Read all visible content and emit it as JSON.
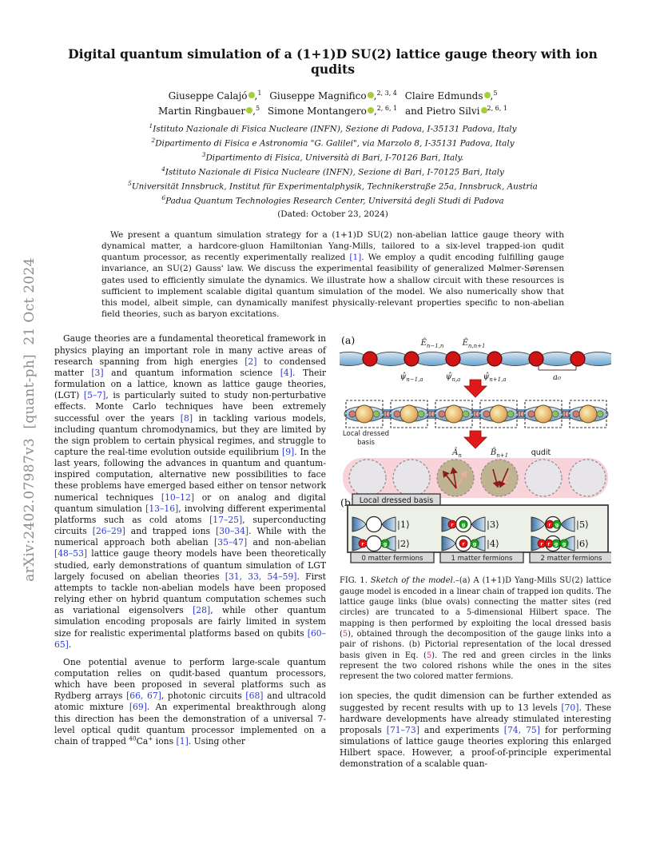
{
  "sidebar": {
    "arxiv_label": "arXiv:2402.07987v3  [quant-ph]  21 Oct 2024"
  },
  "header": {
    "title": "Digital quantum simulation of a (1+1)D SU(2) lattice gauge theory with ion qudits",
    "authors": [
      {
        "name": "Giuseppe Calajó",
        "sep": ",",
        "sups": "1"
      },
      {
        "name": "Giuseppe Magnifico",
        "sep": ",",
        "sups": "2, 3, 4"
      },
      {
        "name": "Claire Edmunds",
        "sep": ",",
        "sups": "5"
      },
      {
        "name": "Martin Ringbauer",
        "sep": ",",
        "sups": "5"
      },
      {
        "name": "Simone Montangero",
        "sep": ",",
        "sups": "2, 6, 1"
      },
      {
        "name": "and Pietro Silvi",
        "sep": "",
        "sups": "2, 6, 1"
      }
    ],
    "affiliations": [
      {
        "sup": "1",
        "text": "Istituto Nazionale di Fisica Nucleare (INFN), Sezione di Padova, I-35131 Padova, Italy"
      },
      {
        "sup": "2",
        "text": "Dipartimento di Fisica e Astronomia \"G. Galilei\", via Marzolo 8, I-35131 Padova, Italy"
      },
      {
        "sup": "3",
        "text": "Dipartimento di Fisica, Università di Bari, I-70126 Bari, Italy."
      },
      {
        "sup": "4",
        "text": "Istituto Nazionale di Fisica Nucleare (INFN), Sezione di Bari, I-70125 Bari, Italy"
      },
      {
        "sup": "5",
        "text": "Universität Innsbruck, Institut für Experimentalphysik, Technikerstraße 25a, Innsbruck, Austria"
      },
      {
        "sup": "6",
        "text": "Padua Quantum Technologies Research Center, Universitá degli Studi di Padova"
      }
    ],
    "date": "(Dated: October 23, 2024)"
  },
  "abstract": {
    "segments": [
      {
        "t": "We present a quantum simulation strategy for a (1+1)D SU(2) non-abelian lattice gauge theory with dynamical matter, a hardcore-gluon Hamiltonian Yang-Mills, tailored to a six-level trapped-ion qudit quantum processor, as recently experimentally realized "
      },
      {
        "t": "[1]",
        "s": "c"
      },
      {
        "t": ". We employ a qudit encoding fulfilling gauge invariance, an SU(2) Gauss' law. We discuss the experimental feasibility of generalized Mølmer-Sørensen gates used to efficiently simulate the dynamics. We illustrate how a shallow circuit with these resources is sufficient to implement scalable digital quantum simulation of the model. We also numerically show that this model, albeit simple, can dynamically manifest physically-relevant properties specific to non-abelian field theories, such as baryon excitations."
      }
    ]
  },
  "columns": {
    "left": {
      "paragraphs": [
        {
          "segments": [
            {
              "t": "Gauge theories are a fundamental theoretical framework in physics playing an important role in many active areas of research spanning from high energies "
            },
            {
              "t": "[2]",
              "s": "c"
            },
            {
              "t": " to condensed matter "
            },
            {
              "t": "[3]",
              "s": "c"
            },
            {
              "t": " and quantum information science "
            },
            {
              "t": "[4]",
              "s": "c"
            },
            {
              "t": ". Their formulation on a lattice, known as lattice gauge theories, (LGT) "
            },
            {
              "t": "[5–7]",
              "s": "c"
            },
            {
              "t": ", is particularly suited to study non-perturbative effects. Monte Carlo techniques have been extremely successful over the years "
            },
            {
              "t": "[8]",
              "s": "c"
            },
            {
              "t": " in tackling various models, including quantum chromodynamics, but they are limited by the sign problem to certain physical regimes, and struggle to capture the real-time evolution outside equilibrium "
            },
            {
              "t": "[9]",
              "s": "c"
            },
            {
              "t": ". In the last years, following the advances in quantum and quantum-inspired computation, alternative new possibilities to face these problems have emerged based either on tensor network numerical techniques "
            },
            {
              "t": "[10–12]",
              "s": "c"
            },
            {
              "t": " or on analog and digital quantum simulation "
            },
            {
              "t": "[13–16]",
              "s": "c"
            },
            {
              "t": ", involving different experimental platforms such as cold atoms "
            },
            {
              "t": "[17–25]",
              "s": "c"
            },
            {
              "t": ", superconducting circuits "
            },
            {
              "t": "[26–29]",
              "s": "c"
            },
            {
              "t": " and trapped ions "
            },
            {
              "t": "[30–34]",
              "s": "c"
            },
            {
              "t": ". While with the numerical approach both abelian "
            },
            {
              "t": "[35–47]",
              "s": "c"
            },
            {
              "t": " and non-abelian "
            },
            {
              "t": "[48–53]",
              "s": "c"
            },
            {
              "t": " lattice gauge theory models have been theoretically studied, early demonstrations of quantum simulation of LGT largely focused on abelian theories "
            },
            {
              "t": "[31, 33, 54–59]",
              "s": "c"
            },
            {
              "t": ". First attempts to tackle non-abelian models have been proposed relying ether on hybrid quantum computation schemes such as variational eigensolvers "
            },
            {
              "t": "[28]",
              "s": "c"
            },
            {
              "t": ", while other quantum simulation encoding proposals are fairly limited in system size for realistic experimental platforms based on qubits "
            },
            {
              "t": "[60–65]",
              "s": "c"
            },
            {
              "t": "."
            }
          ]
        },
        {
          "segments": [
            {
              "t": "One potential avenue to perform large-scale quantum computation relies on qudit-based quantum processors, which have been proposed in several platforms such as Rydberg arrays "
            },
            {
              "t": "[66, 67]",
              "s": "c"
            },
            {
              "t": ", photonic circuits "
            },
            {
              "t": "[68]",
              "s": "c"
            },
            {
              "t": " and ultracold atomic mixture "
            },
            {
              "t": "[69]",
              "s": "c"
            },
            {
              "t": ". An experimental breakthrough along this direction has been the demonstration of a universal 7-level optical qudit quantum processor implemented on a chain of trapped "
            },
            {
              "t": "40",
              "s": "u"
            },
            {
              "t": "Ca"
            },
            {
              "t": "+",
              "s": "u"
            },
            {
              "t": " ions "
            },
            {
              "t": "[1]",
              "s": "c"
            },
            {
              "t": ". Using other"
            }
          ]
        }
      ]
    },
    "right": {
      "paragraphs": [
        {
          "segments": [
            {
              "t": "ion species, the qudit dimension can be further extended as suggested by recent results with up to 13 levels "
            },
            {
              "t": "[70]",
              "s": "c"
            },
            {
              "t": ". These hardware developments have already stimulated interesting proposals "
            },
            {
              "t": "[71–73]",
              "s": "c"
            },
            {
              "t": " and experiments "
            },
            {
              "t": "[74, 75]",
              "s": "c"
            },
            {
              "t": " for performing simulations of lattice gauge theories exploring this enlarged Hilbert space. However, a proof-of-principle experimental demonstration of a scalable quan-"
            }
          ]
        }
      ]
    }
  },
  "caption": {
    "segments": [
      {
        "t": "FIG. 1. "
      },
      {
        "t": "Sketch of the model.–",
        "s": "i"
      },
      {
        "t": "(a) A (1+1)D Yang-Mills SU(2) lattice gauge model is encoded in a linear chain of trapped ion qudits. The lattice gauge links (blue ovals) connecting the matter sites (red circles) are truncated to a 5-dimensional Hilbert space. The mapping is then performed by exploiting the local dressed basis ("
      },
      {
        "t": "5",
        "s": "e"
      },
      {
        "t": "), obtained through the decomposition of the gauge links into a pair of rishons. (b) Pictorial representation of the local dressed basis given in Eq. ("
      },
      {
        "t": "5",
        "s": "e"
      },
      {
        "t": "). The red and green circles in the links represent the two colored rishons while the ones in the sites represent the two colored matter fermions."
      }
    ]
  },
  "figure": {
    "panel_a": {
      "label": "(a)",
      "link_op": "Ê",
      "link_op_sub_left": "n−1,n",
      "link_op_sub_right": "n,n+1",
      "matter_op": "ψ̂",
      "matter_sub_1": "n−1,a",
      "matter_sub_2": "n,a",
      "matter_sub_3": "n+1,a",
      "lattice_spacing": "a₀",
      "dressed_label_line1": "Local dressed",
      "dressed_label_line2": "basis",
      "gate_a": "Â",
      "gate_a_sub": "n",
      "gate_b": "B̂",
      "gate_b_sub": "n+1",
      "qudit_label": "qudit"
    },
    "panel_b": {
      "label": "(b)",
      "header": "Local dressed basis",
      "kets": [
        "|1⟩",
        "|2⟩",
        "|3⟩",
        "|4⟩",
        "|5⟩",
        "|6⟩"
      ],
      "rishon_red": "r",
      "rishon_green": "g",
      "groups": [
        "0 matter fermions",
        "1 matter fermions",
        "2 matter fermions"
      ]
    }
  },
  "colors": {
    "citation_link": "#2d3bd1",
    "equation_link": "#e0218a",
    "arxiv_gray": "#8c8c8c",
    "orcid_green": "#a6ce39",
    "arrow_red": "#e01818"
  }
}
